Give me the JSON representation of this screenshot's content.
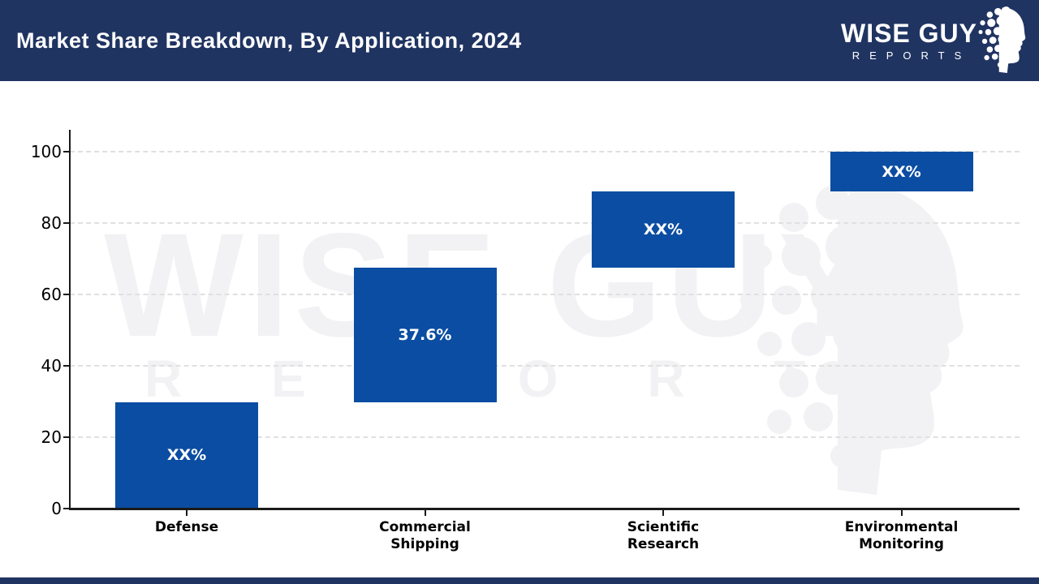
{
  "header": {
    "title": "Market Share Breakdown, By Application, 2024",
    "logo": {
      "name": "WISE GUY",
      "sub": "REPORTS"
    }
  },
  "watermark": {
    "text": "WISE GUY",
    "sub": "R E P O R T S"
  },
  "chart_data": {
    "type": "bar",
    "variant": "waterfall-floating-bars",
    "title": "Market Share Breakdown, By Application, 2024",
    "categories": [
      "Defense",
      "Commercial Shipping",
      "Scientific Research",
      "Environmental Monitoring"
    ],
    "segments": [
      {
        "category": "Defense",
        "start": 0,
        "end": 29.8,
        "label": "XX%"
      },
      {
        "category": "Commercial Shipping",
        "start": 29.8,
        "end": 67.4,
        "label": "37.6%"
      },
      {
        "category": "Scientific Research",
        "start": 67.4,
        "end": 88.8,
        "label": "XX%"
      },
      {
        "category": "Environmental Monitoring",
        "start": 88.8,
        "end": 100,
        "label": "XX%"
      }
    ],
    "yticks": [
      0,
      20,
      40,
      60,
      80,
      100
    ],
    "ylim": [
      0,
      106
    ],
    "xlabel": "",
    "ylabel": "",
    "grid": "horizontal-dashed",
    "legend": "none"
  },
  "colors": {
    "header_bg": "#203462",
    "footer_bg": "#203462",
    "bar": "#0b4da2",
    "bar_label": "#ffffff",
    "axis": "#1a1a1a",
    "grid": "#e0e0e0",
    "watermark": "#f2f2f4"
  }
}
